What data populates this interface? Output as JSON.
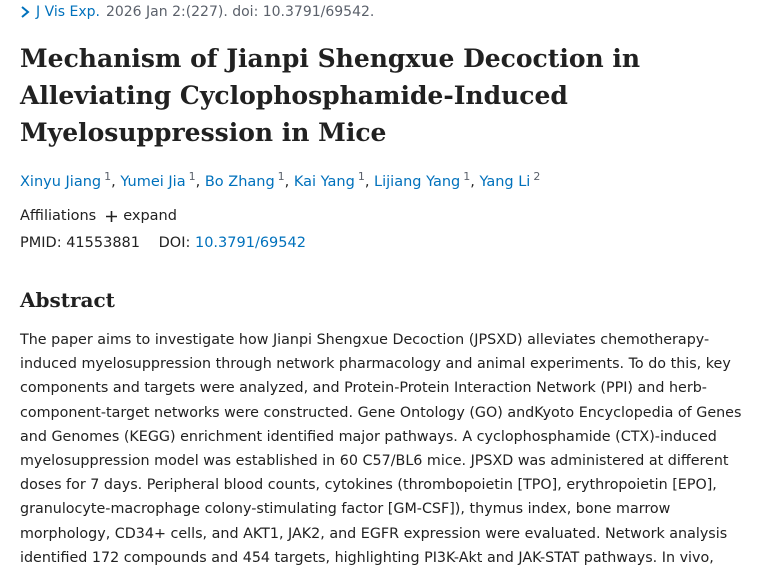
{
  "citation": {
    "journal": "J Vis Exp.",
    "details": "2026 Jan 2:(227). doi: 10.3791/69542."
  },
  "title": "Mechanism of Jianpi Shengxue Decoction in Alleviating Cyclophosphamide-Induced Myelosuppression in Mice",
  "authors": [
    {
      "name": "Xinyu Jiang",
      "aff": "1",
      "sep": ","
    },
    {
      "name": "Yumei Jia",
      "aff": "1",
      "sep": ","
    },
    {
      "name": "Bo Zhang",
      "aff": "1",
      "sep": ","
    },
    {
      "name": "Kai Yang",
      "aff": "1",
      "sep": ","
    },
    {
      "name": "Lijiang Yang",
      "aff": "1",
      "sep": ","
    },
    {
      "name": "Yang Li",
      "aff": "2"
    }
  ],
  "affiliations": {
    "label": "Affiliations",
    "toggle": "expand"
  },
  "ids": {
    "pmid_label": "PMID:",
    "pmid": "41553881",
    "doi_label": "DOI:",
    "doi": "10.3791/69542"
  },
  "abstract": {
    "heading": "Abstract",
    "text": "The paper aims to investigate how Jianpi Shengxue Decoction (JPSXD) alleviates chemotherapy-induced myelosuppression through network pharmacology and animal experiments. To do this, key components and targets were analyzed, and Protein-Protein Interaction Network (PPI) and herb-component-target networks were constructed. Gene Ontology (GO) andKyoto Encyclopedia of Genes and Genomes (KEGG) enrichment identified major pathways. A cyclophosphamide (CTX)-induced myelosuppression model was established in 60 C57/BL6 mice. JPSXD was administered at different doses for 7 days. Peripheral blood counts, cytokines (thrombopoietin [TPO], erythropoietin [EPO], granulocyte-macrophage colony-stimulating factor [GM-CSF]), thymus index, bone marrow morphology, CD34+ cells, and AKT1, JAK2, and EGFR expression were evaluated. Network analysis identified 172 compounds and 454 targets, highlighting PI3K-Akt and JAK-STAT pathways. In vivo, CTX"
  }
}
